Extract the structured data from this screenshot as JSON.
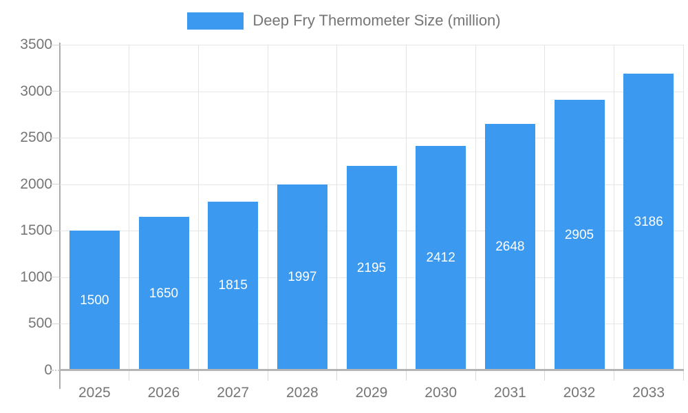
{
  "legend": {
    "label": "Deep Fry Thermometer Size (million)"
  },
  "chart_data": {
    "type": "bar",
    "title": "",
    "series_name": "Deep Fry Thermometer Size (million)",
    "categories": [
      "2025",
      "2026",
      "2027",
      "2028",
      "2029",
      "2030",
      "2031",
      "2032",
      "2033"
    ],
    "values": [
      1500,
      1650,
      1815,
      1997,
      2195,
      2412,
      2648,
      2905,
      3186
    ],
    "xlabel": "",
    "ylabel": "",
    "ylim": [
      0,
      3500
    ],
    "yticks": [
      0,
      500,
      1000,
      1500,
      2000,
      2500,
      3000,
      3500
    ],
    "grid": true,
    "legend_position": "top-center",
    "value_label_position": "inside-center"
  },
  "colors": {
    "bar": "#3B9AF0",
    "value_label": "#ffffff",
    "axis_text": "#757575",
    "legend_text": "#757575",
    "gridline": "#e6e6e6",
    "axis_line": "#ababab",
    "background": "#ffffff"
  }
}
